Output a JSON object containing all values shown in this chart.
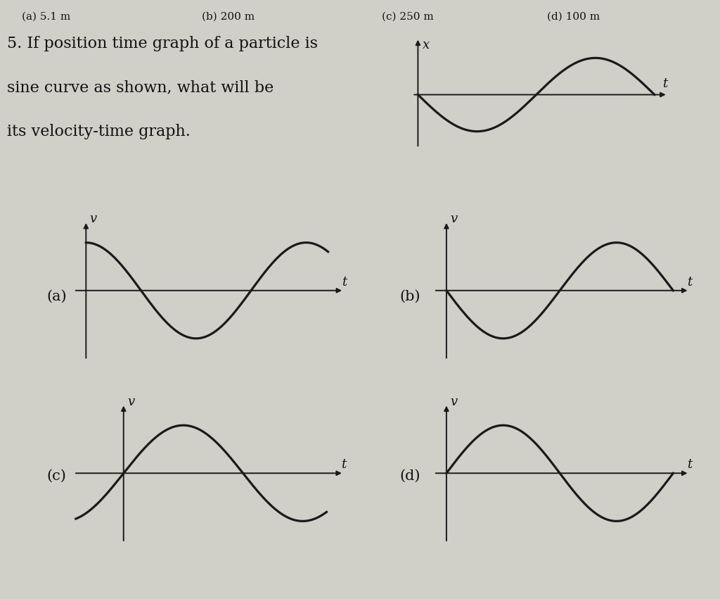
{
  "bg_color": "#d0cfc8",
  "line_color": "#1a1a1a",
  "axis_color": "#1a1a1a",
  "text_color": "#111111",
  "question_lines": [
    "5. If position time graph of a particle is",
    "sine curve as shown, what will be",
    "its velocity-time graph."
  ],
  "top_bar_text": "(a) 5.1 m          (b) 200 m          (c) 250 m          (d) 100 m",
  "labels": [
    "(a)",
    "(b)",
    "(c)",
    "(d)"
  ],
  "xlabel_t": "t",
  "ylabel_v": "v",
  "ylabel_x": "x",
  "font_size_q": 16,
  "font_size_label": 15,
  "font_size_axis": 13,
  "lw": 2.3
}
